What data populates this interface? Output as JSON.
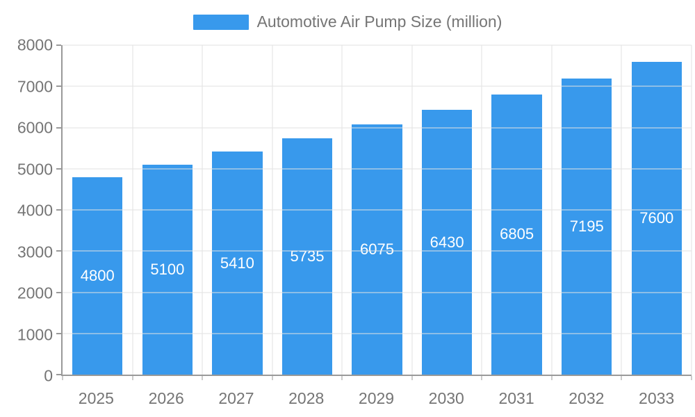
{
  "chart_data": {
    "type": "bar",
    "title": "Automotive Air Pump Size (million)",
    "categories": [
      "2025",
      "2026",
      "2027",
      "2028",
      "2029",
      "2030",
      "2031",
      "2032",
      "2033"
    ],
    "series": [
      {
        "name": "Automotive Air Pump Size (million)",
        "values": [
          4800,
          5100,
          5410,
          5735,
          6075,
          6430,
          6805,
          7195,
          7600
        ]
      }
    ],
    "legend": {
      "entries": [
        "Automotive Air Pump Size (million)"
      ],
      "position": "top-center"
    },
    "xlabel": "",
    "ylabel": "",
    "ylim": [
      0,
      8000
    ],
    "ytick_step": 1000,
    "grid": true,
    "value_labels": "inside-center",
    "colors": {
      "bar": "#3899EC",
      "value_label": "#FFFFFF",
      "axis": "#999999",
      "gridline": "#E2E2E2",
      "x_tick": "#CCCCCC",
      "tick_label": "#757575",
      "background": "#FFFFFF"
    }
  }
}
